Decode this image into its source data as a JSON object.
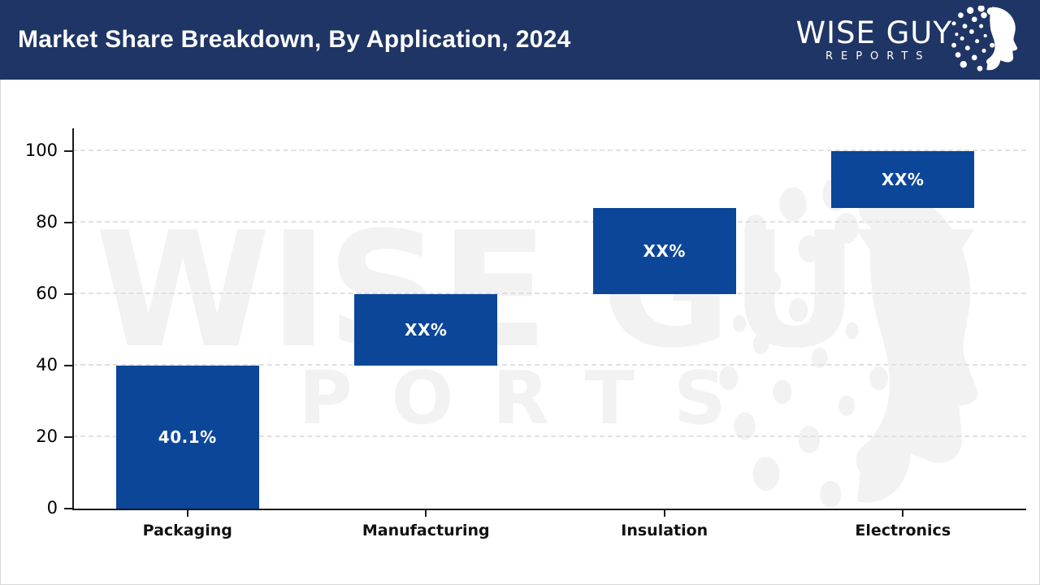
{
  "header": {
    "title": "Market Share Breakdown, By Application, 2024",
    "brand": {
      "line1": "WISE GUY",
      "line2": "REPORTS"
    }
  },
  "watermark": {
    "line1": "WISE GUY",
    "line2": "REPORTS"
  },
  "chart_data": {
    "type": "bar",
    "subtype": "waterfall",
    "title": "Market Share Breakdown, By Application, 2024",
    "xlabel": "",
    "ylabel": "",
    "categories": [
      "Packaging",
      "Manufacturing",
      "Insulation",
      "Electronics"
    ],
    "segments": [
      {
        "category": "Packaging",
        "start": 0,
        "end": 40.1,
        "label": "40.1%"
      },
      {
        "category": "Manufacturing",
        "start": 40.1,
        "end": 60,
        "label": "XX%"
      },
      {
        "category": "Insulation",
        "start": 60,
        "end": 84,
        "label": "XX%"
      },
      {
        "category": "Electronics",
        "start": 84,
        "end": 100,
        "label": "XX%"
      }
    ],
    "yticks": [
      0,
      20,
      40,
      60,
      80,
      100
    ],
    "ylim": [
      0,
      105
    ],
    "grid": "horizontal dashed",
    "legend": "none",
    "bar_color": "#0b4699",
    "bar_label_color": "#ffffff"
  },
  "colors": {
    "header_bg": "#1f3565",
    "bar": "#0b4699",
    "grid": "#e0e0e0",
    "axis": "#1a1a1a",
    "watermark": "#f2f2f2",
    "card_border": "#d8d8d8"
  }
}
